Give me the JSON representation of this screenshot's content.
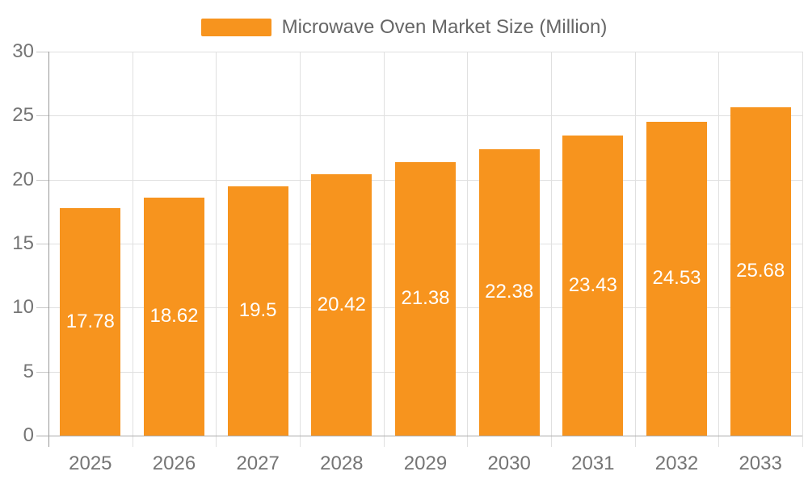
{
  "legend": {
    "label": "Microwave Oven Market Size (Million)"
  },
  "colors": {
    "bar": "#F7941E",
    "gridline": "#E0E0E0",
    "y_axis_line": "#999999",
    "x_axis_line": "#ABABAB",
    "tick": "#C9C9C9",
    "axis_label_text": "#757575",
    "legend_text": "#666666",
    "bar_value_text": "#FFFFFF",
    "background": "#FFFFFF"
  },
  "chart_data": {
    "type": "bar",
    "title": "Microwave Oven Market Size (Million)",
    "xlabel": "",
    "ylabel": "",
    "categories": [
      "2025",
      "2026",
      "2027",
      "2028",
      "2029",
      "2030",
      "2031",
      "2032",
      "2033"
    ],
    "values": [
      17.78,
      18.62,
      19.5,
      20.42,
      21.38,
      22.38,
      23.43,
      24.53,
      25.68
    ],
    "series_name": "Microwave Oven Market Size (Million)",
    "ylim": [
      0,
      30
    ],
    "yticks": [
      0,
      5,
      10,
      15,
      20,
      25,
      30
    ],
    "grid": true,
    "legend_position": "top",
    "value_label_position": "inside-center"
  }
}
